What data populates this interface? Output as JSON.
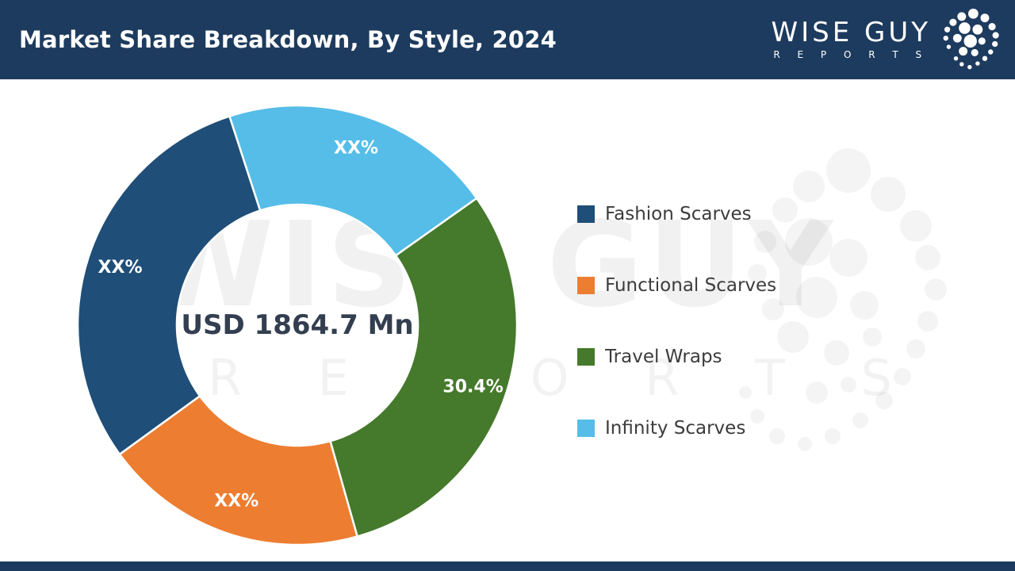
{
  "header": {
    "title": "Market Share Breakdown, By Style, 2024",
    "brand_name": "WISE GUY",
    "brand_sub": "R E P O R T S"
  },
  "chart_data": {
    "type": "donut",
    "title": "Market Share Breakdown, By Style, 2024",
    "center_label": "USD 1864.7 Mn",
    "unit": "%",
    "direction": "clockwise",
    "start_angle_deg": -18,
    "legend_position": "right",
    "segments": [
      {
        "name": "Infinity Scarves",
        "display_label": "XX%",
        "value": 20.2,
        "color": "#55bde8"
      },
      {
        "name": "Travel Wraps",
        "display_label": "30.4%",
        "value": 30.4,
        "color": "#45792b"
      },
      {
        "name": "Functional Scarves",
        "display_label": "XX%",
        "value": 19.4,
        "color": "#ed7d31"
      },
      {
        "name": "Fashion Scarves",
        "display_label": "XX%",
        "value": 30.0,
        "color": "#1f4e78"
      }
    ]
  },
  "legend": {
    "items": [
      {
        "label": "Fashion Scarves",
        "color": "#1f4e78"
      },
      {
        "label": "Functional Scarves",
        "color": "#ed7d31"
      },
      {
        "label": "Travel Wraps",
        "color": "#45792b"
      },
      {
        "label": "Infinity Scarves",
        "color": "#55bde8"
      }
    ]
  },
  "watermark": {
    "line1": "WISE GUY",
    "line2": "R E P O R T S"
  },
  "colors": {
    "header_bg": "#1d3b5e",
    "footer_bg": "#1d3b5e",
    "center_text": "#333f50",
    "legend_text": "#3c3c3c",
    "segment_label_text": "#ffffff"
  }
}
